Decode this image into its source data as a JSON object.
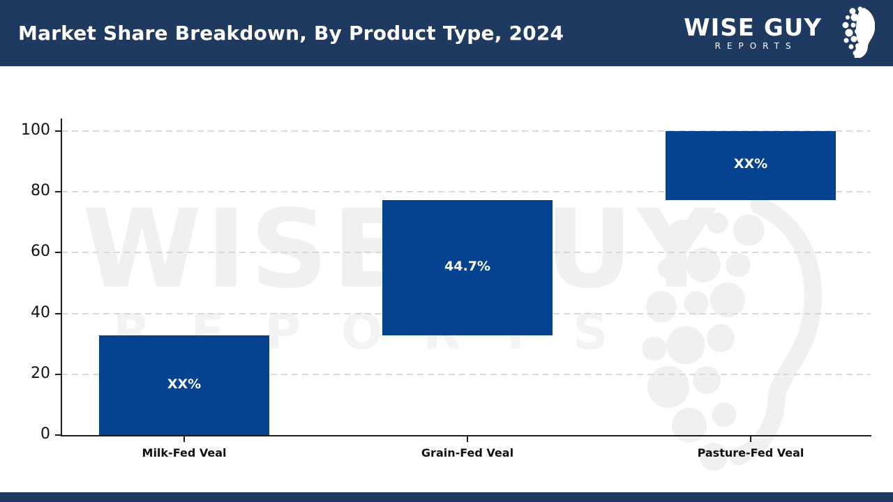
{
  "header": {
    "title": "Market Share Breakdown, By Product Type, 2024",
    "background": "#1f3a61",
    "logo": {
      "line1": "WISE GUY",
      "line2": "REPORTS"
    }
  },
  "watermark": {
    "line1": "WISE GUY",
    "line2": "REPORTS"
  },
  "chart_data": {
    "type": "bar",
    "subtype": "waterfall",
    "title": "Market Share Breakdown, By Product Type, 2024",
    "categories": [
      "Milk-Fed Veal",
      "Grain-Fed Veal",
      "Pasture-Fed Veal"
    ],
    "segments": [
      {
        "category": "Milk-Fed Veal",
        "start": 0,
        "end": 32.7,
        "label": "XX%"
      },
      {
        "category": "Grain-Fed Veal",
        "start": 32.7,
        "end": 77.4,
        "label": "44.7%"
      },
      {
        "category": "Pasture-Fed Veal",
        "start": 77.4,
        "end": 100,
        "label": "XX%"
      }
    ],
    "ylim": [
      0,
      100
    ],
    "yticks": [
      0,
      20,
      40,
      60,
      80,
      100
    ],
    "grid": "horizontal-dashed",
    "legend": "none",
    "bar_color": "#05428f",
    "bar_label_color": "#ffffff"
  }
}
